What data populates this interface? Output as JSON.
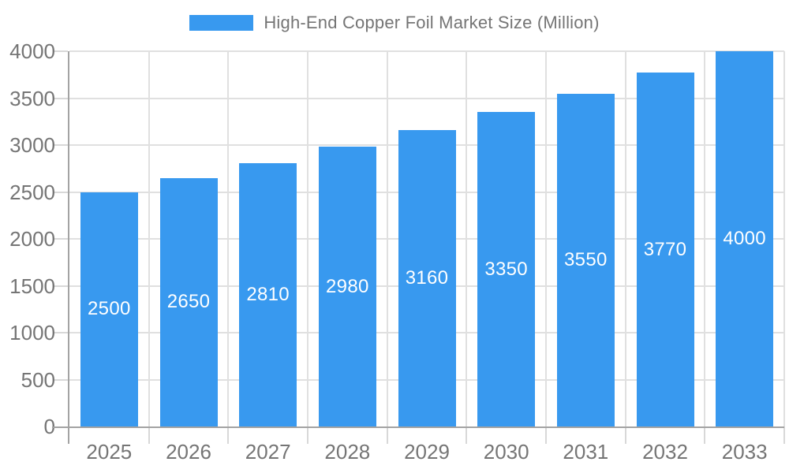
{
  "chart_data": {
    "type": "bar",
    "title": "High-End Copper Foil Market Size (Million)",
    "categories": [
      "2025",
      "2026",
      "2027",
      "2028",
      "2029",
      "2030",
      "2031",
      "2032",
      "2033"
    ],
    "values": [
      2500,
      2650,
      2810,
      2980,
      3160,
      3350,
      3550,
      3770,
      4000
    ],
    "xlabel": "",
    "ylabel": "",
    "ylim": [
      0,
      4000
    ],
    "ytick_step": 500,
    "ytick_labels": [
      "0",
      "500",
      "1000",
      "1500",
      "2000",
      "2500",
      "3000",
      "3500",
      "4000"
    ],
    "grid": true,
    "legend_position": "top-center",
    "bar_label_position": "inside-center",
    "colors": {
      "bar": "#3899EF",
      "bar_label_text": "#FFFFFF",
      "grid_line": "#E0E0E0",
      "tick_line": "#D8D8D8",
      "axis_line": "#A3A3A3",
      "tick_text": "#757575",
      "legend_text": "#757575",
      "background": "#FFFFFF"
    }
  }
}
